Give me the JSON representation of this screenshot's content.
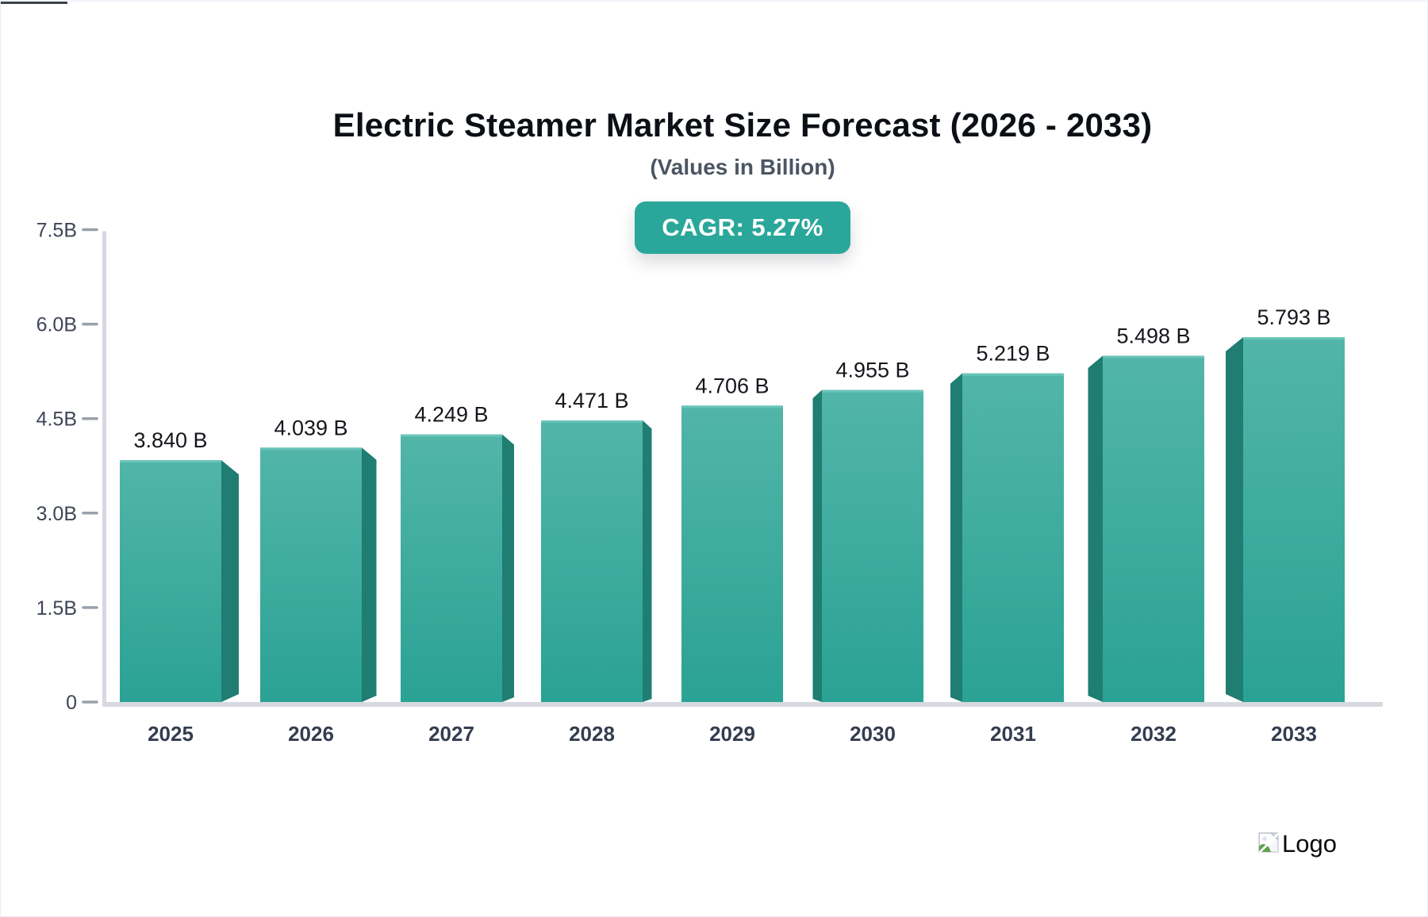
{
  "chart_data": {
    "type": "bar",
    "title": "Electric Steamer Market Size Forecast (2026 - 2033)",
    "subtitle": "(Values in Billion)",
    "badge": "CAGR: 5.27%",
    "categories": [
      "2025",
      "2026",
      "2027",
      "2028",
      "2029",
      "2030",
      "2031",
      "2032",
      "2033"
    ],
    "values": [
      3.84,
      4.039,
      4.249,
      4.471,
      4.706,
      4.955,
      5.219,
      5.498,
      5.793
    ],
    "value_labels": [
      "3.840 B",
      "4.039 B",
      "4.249 B",
      "4.471 B",
      "4.706 B",
      "4.955 B",
      "5.219 B",
      "5.498 B",
      "5.793 B"
    ],
    "xlabel": "",
    "ylabel": "",
    "ylim": [
      0,
      7.5
    ],
    "grid": "off",
    "legend": "none",
    "y_ticks": [
      {
        "label": "0",
        "value": 0
      },
      {
        "label": "1.5B",
        "value": 1.5
      },
      {
        "label": "3.0B",
        "value": 3.0
      },
      {
        "label": "4.5B",
        "value": 4.5
      },
      {
        "label": "6.0B",
        "value": 6.0
      },
      {
        "label": "7.5B",
        "value": 7.5
      }
    ],
    "bar_style": "3d-perspective-center-vanishing",
    "colors": {
      "bar_top": "#52b5a9",
      "bar_bottom": "#2aa294",
      "bar_top_edge": "#6ac5b8",
      "bar_side": "#1f7d71",
      "axis": "#d6d9e0",
      "tick_dash": "#9aa0ab",
      "y_label": "#3e4556",
      "x_label": "#343d4f",
      "value_label": "#14171c",
      "badge_bg": "#2aa79a",
      "badge_text": "#ffffff",
      "title": "#0c1016",
      "subtitle": "#4b5563"
    }
  },
  "logo": {
    "alt": "Logo"
  }
}
